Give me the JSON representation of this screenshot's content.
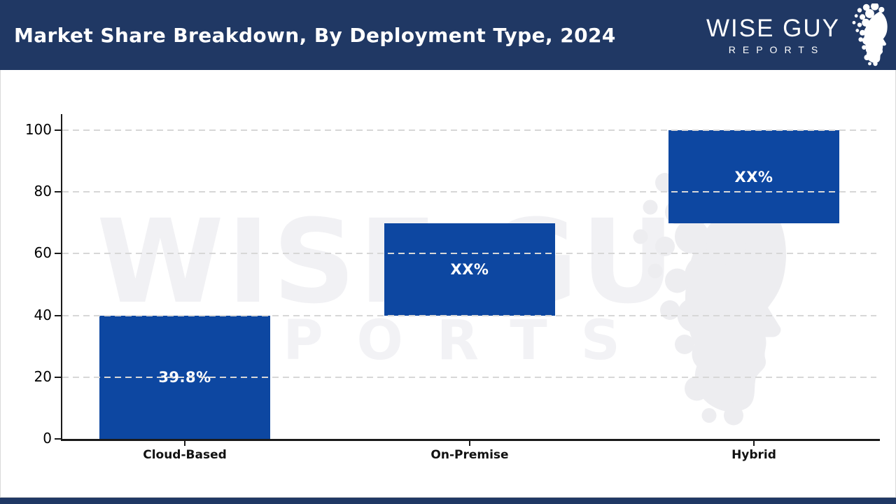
{
  "header": {
    "title": "Market Share Breakdown, By Deployment Type, 2024",
    "logo": {
      "line1": "WISE GUY",
      "line2": "REPORTS"
    }
  },
  "watermark": {
    "line1": "WISE GUY",
    "line2": "REPORTS"
  },
  "chart_data": {
    "type": "bar",
    "subtype": "stacked-waterfall",
    "title": "Market Share Breakdown, By Deployment Type, 2024",
    "categories": [
      "Cloud-Based",
      "On-Premise",
      "Hybrid"
    ],
    "segments": [
      {
        "category": "Cloud-Based",
        "start": 0,
        "end": 39.8,
        "label": "39.8%"
      },
      {
        "category": "On-Premise",
        "start": 39.8,
        "end": 69.8,
        "label": "XX%"
      },
      {
        "category": "Hybrid",
        "start": 69.8,
        "end": 100,
        "label": "XX%"
      }
    ],
    "ylim": [
      0,
      100
    ],
    "yticks": [
      0,
      20,
      40,
      60,
      80,
      100
    ],
    "grid": true,
    "grid_style": "dashed",
    "legend": "none",
    "bar_color": "#0D47A1",
    "bar_label_color": "#ffffff"
  },
  "colors": {
    "header_bg": "#203864",
    "footer_bg": "#203864",
    "axis": "#1a1a1a",
    "gridline": "#d7d7d7",
    "watermark": "#f1f1f4"
  }
}
